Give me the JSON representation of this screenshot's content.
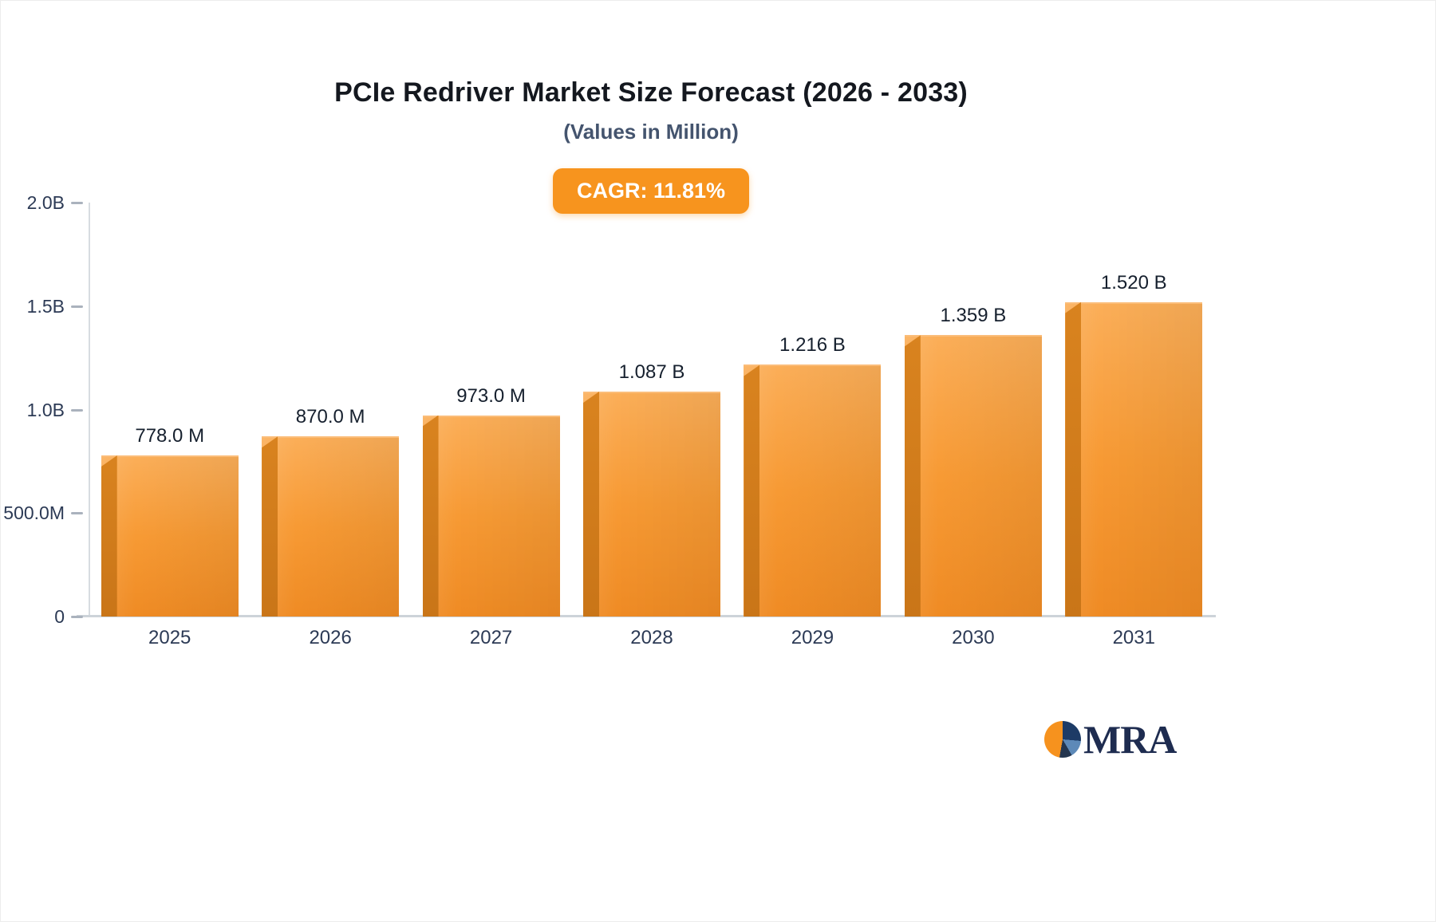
{
  "logo": {
    "text": "MRA"
  },
  "colors": {
    "accent_orange": "#f7941e",
    "bar_gradient_top": "#fbae58",
    "bar_gradient_bottom": "#ef8b24",
    "bar_side": "#c97518",
    "axis_text": "#2c3a55",
    "title_text": "#14181f",
    "subtitle_text": "#44546e",
    "badge_text": "#ffffff",
    "logo_navy": "#1e2c50"
  },
  "chart_data": {
    "type": "bar",
    "title": "PCIe Redriver Market Size Forecast (2026 - 2033)",
    "subtitle": "(Values in Million)",
    "annotation": "CAGR: 11.81%",
    "categories": [
      "2025",
      "2026",
      "2027",
      "2028",
      "2029",
      "2030",
      "2031"
    ],
    "values_millions": [
      778.0,
      870.0,
      973.0,
      1087,
      1216,
      1359,
      1520
    ],
    "value_labels": [
      "778.0 M",
      "870.0 M",
      "973.0 M",
      "1.087 B",
      "1.216 B",
      "1.359 B",
      "1.520 B"
    ],
    "xlabel": "",
    "ylabel": "",
    "ylim_millions": [
      0,
      2000
    ],
    "y_ticks": [
      {
        "value": 2000,
        "label": "2.0B"
      },
      {
        "value": 1500,
        "label": "1.5B"
      },
      {
        "value": 1000,
        "label": "1.0B"
      },
      {
        "value": 500,
        "label": "500.0M"
      },
      {
        "value": 0,
        "label": "0"
      }
    ],
    "grid": "off",
    "legend": "none"
  }
}
